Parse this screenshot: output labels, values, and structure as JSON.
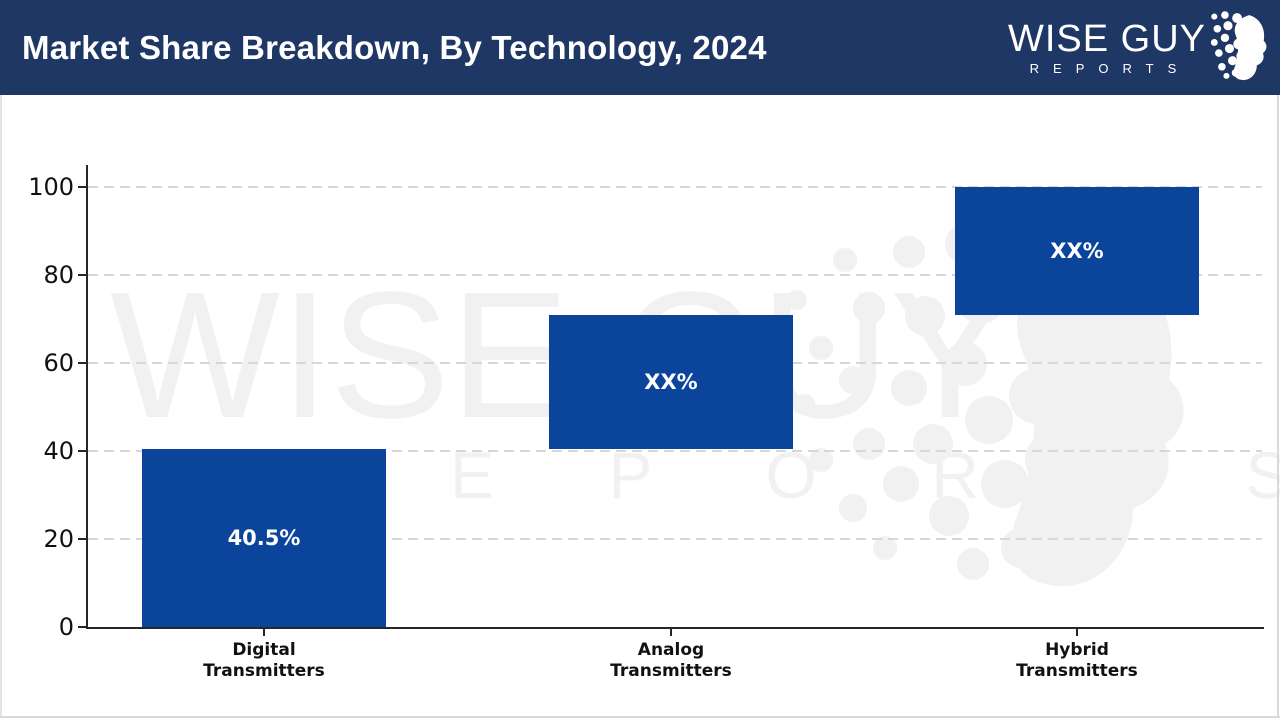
{
  "header": {
    "title": "Market Share Breakdown, By Technology, 2024",
    "logo_name": "WISE GUY",
    "logo_sub": "REPORTS"
  },
  "watermark": {
    "line1": "WISE GUY",
    "line2": "R E P O R T S"
  },
  "chart_data": {
    "type": "bar",
    "subtype": "waterfall",
    "title": "Market Share Breakdown, By Technology, 2024",
    "categories": [
      "Digital\nTransmitters",
      "Analog\nTransmitters",
      "Hybrid\nTransmitters"
    ],
    "segments": [
      {
        "category": "Digital Transmitters",
        "start": 0,
        "end": 40.5,
        "delta": 40.5,
        "label": "40.5%"
      },
      {
        "category": "Analog Transmitters",
        "start": 40.5,
        "end": 71,
        "delta": 30.5,
        "label": "XX%"
      },
      {
        "category": "Hybrid Transmitters",
        "start": 71,
        "end": 100,
        "delta": 29,
        "label": "XX%"
      }
    ],
    "yticks": [
      0,
      20,
      40,
      60,
      80,
      100
    ],
    "ylim": [
      0,
      105
    ],
    "xlabel": "",
    "ylabel": "",
    "grid": "dashed-horizontal",
    "legend": "none",
    "bar_color": "#0a459b",
    "bar_label_color": "#ffffff"
  },
  "colors": {
    "header_bg": "#1f3765",
    "bar": "#0a459b",
    "grid": "#d7d7d7",
    "axis": "#262626",
    "watermark": "#f1f1f1"
  }
}
